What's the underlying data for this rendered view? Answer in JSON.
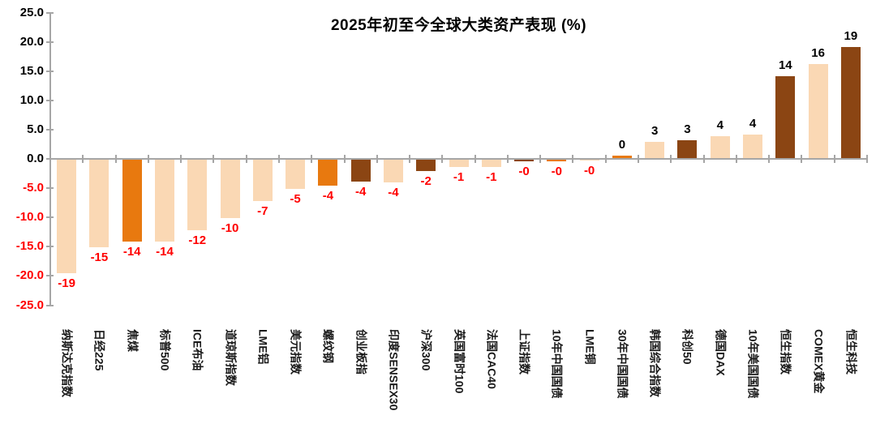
{
  "chart_data": {
    "type": "bar",
    "title": "2025年初至今全球大类资产表现 (%)",
    "ylabel": "",
    "xlabel": "",
    "ylim": [
      -25,
      25
    ],
    "ytick_values": [
      25,
      20,
      15,
      10,
      5,
      0,
      -5,
      -10,
      -15,
      -20,
      -25
    ],
    "ytick_labels": [
      "25.0",
      "20.0",
      "15.0",
      "10.0",
      "5.0",
      "0.0",
      "-5.0",
      "-10.0",
      "-15.0",
      "-20.0",
      "-25.0"
    ],
    "grid": false,
    "legend": "none",
    "palette": {
      "light": "#FAD8B4",
      "orange": "#E8790F",
      "dark": "#8B4513"
    },
    "label_colors": {
      "positive": "#000000",
      "negative": "#FF0000"
    },
    "ytick_colors": {
      "positive": "#000000",
      "negative": "#FF0000"
    },
    "axis_color": "#A6A6A6",
    "bars": [
      {
        "category": "纳斯达克指数",
        "value": -19.4,
        "label": "-19",
        "color": "light"
      },
      {
        "category": "日经225",
        "value": -15.0,
        "label": "-15",
        "color": "light"
      },
      {
        "category": "焦煤",
        "value": -14.0,
        "label": "-14",
        "color": "orange"
      },
      {
        "category": "标普500",
        "value": -14.0,
        "label": "-14",
        "color": "light"
      },
      {
        "category": "ICE布油",
        "value": -12.0,
        "label": "-12",
        "color": "light"
      },
      {
        "category": "道琼斯指数",
        "value": -10.0,
        "label": "-10",
        "color": "light"
      },
      {
        "category": "LME铝",
        "value": -7.0,
        "label": "-7",
        "color": "light"
      },
      {
        "category": "美元指数",
        "value": -5.0,
        "label": "-5",
        "color": "light"
      },
      {
        "category": "螺纹钢",
        "value": -4.4,
        "label": "-4",
        "color": "orange"
      },
      {
        "category": "创业板指",
        "value": -3.7,
        "label": "-4",
        "color": "dark"
      },
      {
        "category": "印度SENSEX30",
        "value": -3.9,
        "label": "-4",
        "color": "light"
      },
      {
        "category": "沪深300",
        "value": -2.0,
        "label": "-2",
        "color": "dark"
      },
      {
        "category": "英国富时100",
        "value": -1.2,
        "label": "-1",
        "color": "light"
      },
      {
        "category": "法国CAC40",
        "value": -1.2,
        "label": "-1",
        "color": "light"
      },
      {
        "category": "上证指数",
        "value": -0.3,
        "label": "-0",
        "color": "dark"
      },
      {
        "category": "10年中国国债",
        "value": -0.3,
        "label": "-0",
        "color": "orange"
      },
      {
        "category": "LME铜",
        "value": -0.1,
        "label": "-0",
        "color": "light"
      },
      {
        "category": "30年中国国债",
        "value": 0.4,
        "label": "0",
        "color": "orange"
      },
      {
        "category": "韩国综合指数",
        "value": 2.8,
        "label": "3",
        "color": "light"
      },
      {
        "category": "科创50",
        "value": 3.1,
        "label": "3",
        "color": "dark"
      },
      {
        "category": "德国DAX",
        "value": 3.7,
        "label": "4",
        "color": "light"
      },
      {
        "category": "10年美国国债",
        "value": 4.0,
        "label": "4",
        "color": "light"
      },
      {
        "category": "恒生指数",
        "value": 14.0,
        "label": "14",
        "color": "dark"
      },
      {
        "category": "COMEX黄金",
        "value": 16.0,
        "label": "16",
        "color": "light"
      },
      {
        "category": "恒生科技",
        "value": 19.0,
        "label": "19",
        "color": "dark"
      }
    ]
  }
}
